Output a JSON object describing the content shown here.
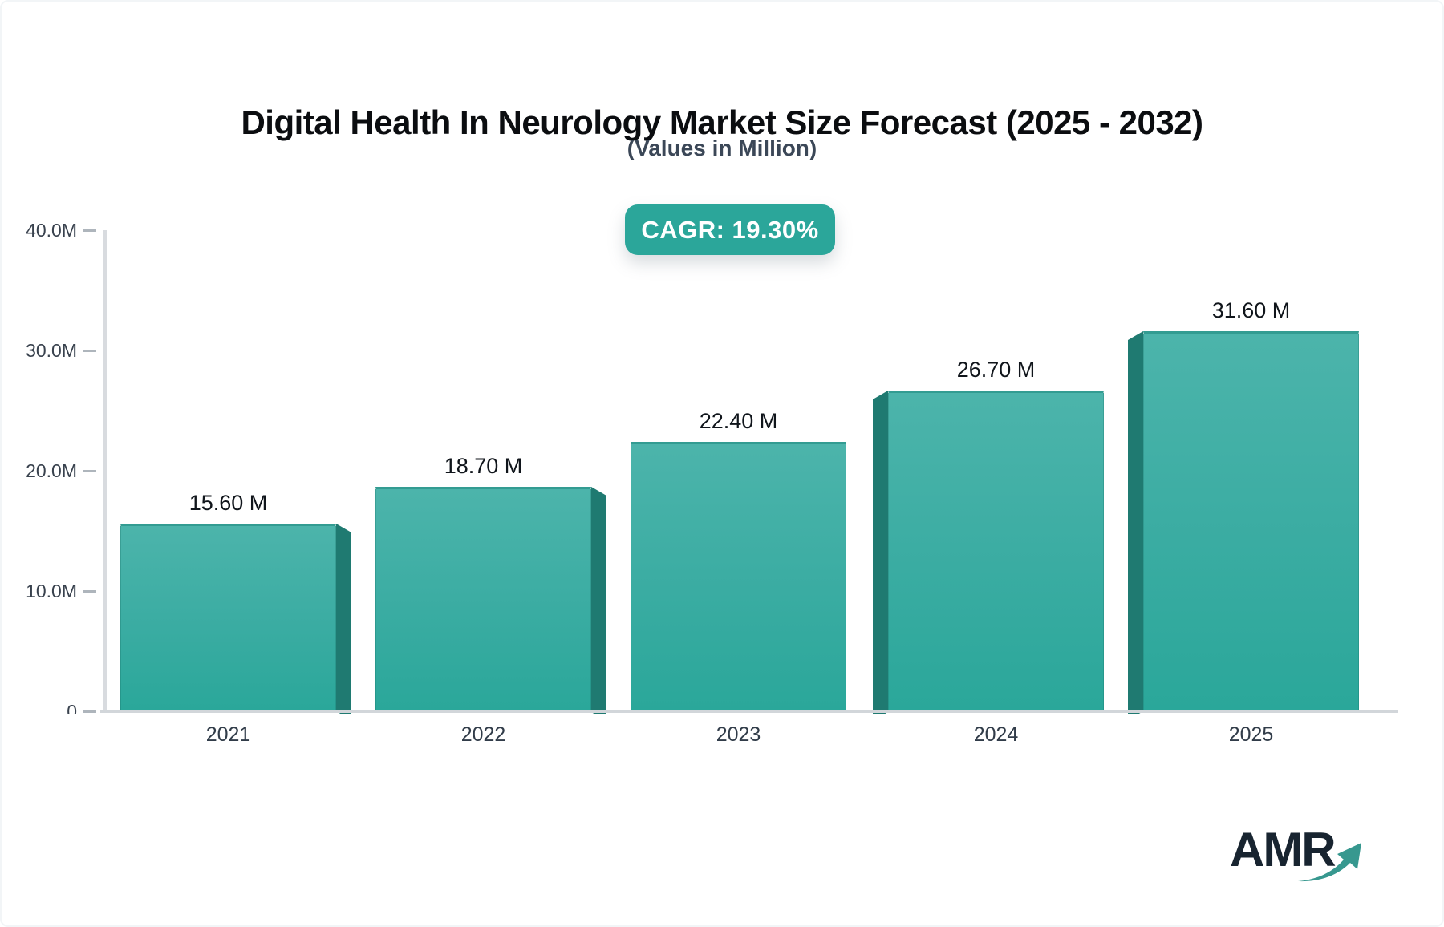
{
  "header": {
    "title": "Digital Health In Neurology Market Size Forecast (2025 - 2032)",
    "subtitle": "(Values in Million)"
  },
  "badge": {
    "label": "CAGR: 19.30%",
    "background": "#2BA69A",
    "text_color": "#FFFFFF"
  },
  "chart_data": {
    "type": "bar",
    "title": "Digital Health In Neurology Market Size Forecast (2025 - 2032)",
    "subtitle": "(Values in Million)",
    "unit": "Million",
    "cagr": "19.30%",
    "categories": [
      "2021",
      "2022",
      "2023",
      "2024",
      "2025"
    ],
    "values": [
      15.6,
      18.7,
      22.4,
      26.7,
      31.6
    ],
    "value_labels": [
      "15.60 M",
      "18.70 M",
      "22.40 M",
      "26.70 M",
      "31.60 M"
    ],
    "xlabel": "",
    "ylabel": "",
    "ylim": [
      0,
      40
    ],
    "y_ticks": [
      {
        "label": "40.0M",
        "value": 40
      },
      {
        "label": "30.0M",
        "value": 30
      },
      {
        "label": "20.0M",
        "value": 20
      },
      {
        "label": "10.0M",
        "value": 10
      },
      {
        "label": "0",
        "value": 0
      }
    ],
    "grid": false,
    "legend": false,
    "colors": {
      "bar_fill_top": "#4CB4AB",
      "bar_fill_bottom": "#2AA79A",
      "bar_side_3d": "#1F7A71",
      "axis_line": "#D8DBDF",
      "tick_label": "#39424E",
      "value_label": "#10151B"
    }
  },
  "logo": {
    "text": "AMR",
    "text_color": "#182430",
    "arrow_color": "#37988F"
  }
}
